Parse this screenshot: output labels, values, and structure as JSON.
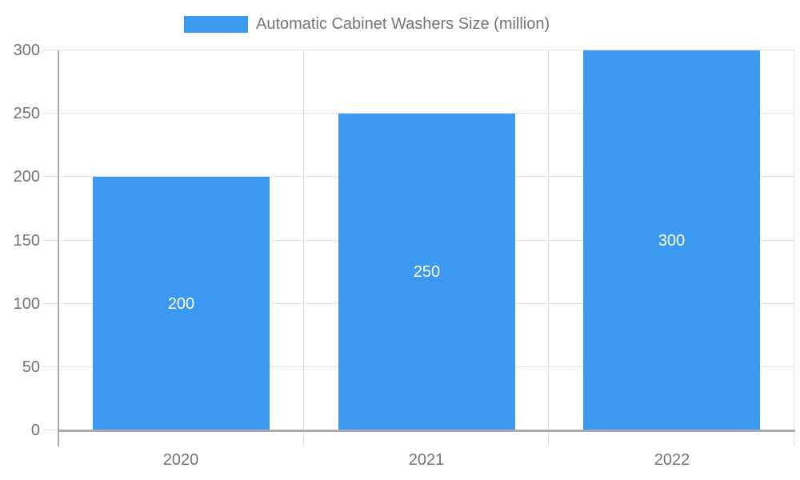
{
  "legend": {
    "label": "Automatic Cabinet Washers Size (million)"
  },
  "colors": {
    "bar": "#3b99f0",
    "bar_label": "#ffffff",
    "grid": "#e3e3e3",
    "axis": "#ababab",
    "text": "#757575",
    "background": "#ffffff"
  },
  "chart_data": {
    "type": "bar",
    "title": "Automatic Cabinet Washers Size (million)",
    "categories": [
      "2020",
      "2021",
      "2022"
    ],
    "series": [
      {
        "name": "Automatic Cabinet Washers Size (million)",
        "values": [
          200,
          250,
          300
        ]
      }
    ],
    "data_labels": [
      "200",
      "250",
      "300"
    ],
    "xlabel": "",
    "ylabel": "",
    "ylim": [
      0,
      300
    ],
    "yticks": [
      0,
      50,
      100,
      150,
      200,
      250,
      300
    ],
    "grid": true,
    "legend_position": "top-center"
  }
}
